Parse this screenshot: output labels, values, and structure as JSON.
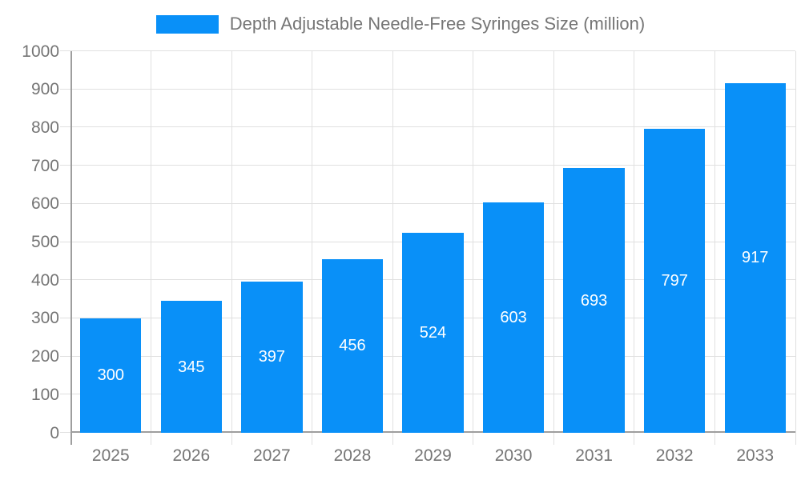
{
  "chart_data": {
    "type": "bar",
    "title": "Depth Adjustable Needle-Free Syringes Size (million)",
    "categories": [
      "2025",
      "2026",
      "2027",
      "2028",
      "2029",
      "2030",
      "2031",
      "2032",
      "2033"
    ],
    "values": [
      300,
      345,
      397,
      456,
      524,
      603,
      693,
      797,
      917
    ],
    "xlabel": "",
    "ylabel": "",
    "ylim": [
      0,
      1000
    ],
    "ytick_step": 100,
    "grid": true,
    "legend_position": "top-center",
    "value_labels": "inside-center"
  },
  "colors": {
    "bar": "#0990f8",
    "grid": "#e0e0e0",
    "axis": "#9e9e9e",
    "tick_text": "#757575",
    "legend_text": "#757575",
    "value_label_text": "#ffffff",
    "background": "#ffffff"
  }
}
